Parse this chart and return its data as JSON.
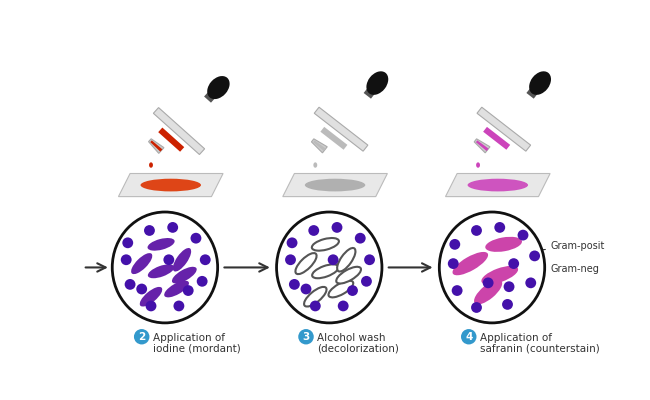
{
  "bg_color": "#ffffff",
  "steps": [
    {
      "label_num": "2",
      "label_text_line1": "Application of",
      "label_text_line2": "iodine (mordant)",
      "dropper_liquid_color": "#cc2200",
      "slide_color": "#dd3300",
      "bacteria_color": "#6622aa",
      "dots_color": "#4411aa",
      "outline_only": false,
      "mixed": false
    },
    {
      "label_num": "3",
      "label_text_line1": "Alcohol wash",
      "label_text_line2": "(decolorization)",
      "dropper_liquid_color": "#bbbbbb",
      "slide_color": "#aaaaaa",
      "bacteria_color": "#ffffff",
      "dots_color": "#4411aa",
      "outline_only": true,
      "mixed": false
    },
    {
      "label_num": "4",
      "label_text_line1": "Application of",
      "label_text_line2": "safranin (counterstain)",
      "dropper_liquid_color": "#cc44bb",
      "slide_color": "#cc44bb",
      "bacteria_color_gp": "#6622aa",
      "bacteria_color_gn": "#cc44aa",
      "dots_color": "#4411aa",
      "outline_only": false,
      "mixed": true
    }
  ],
  "arrow_color": "#333333",
  "label_circle_color": "#3399cc",
  "label_text_color": "#333333",
  "gram_pos_label": "Gram-posit",
  "gram_neg_label": "Gram-neg"
}
